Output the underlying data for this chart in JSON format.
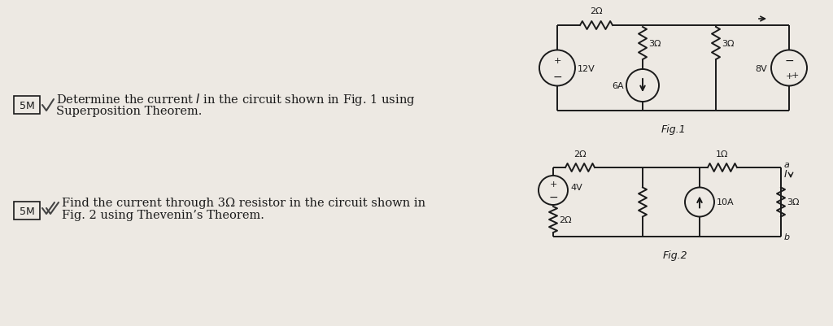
{
  "bg_color": "#ede9e3",
  "line_color": "#1a1a1a",
  "q1_line1": "Determine the current $I$ in the circuit shown in Fig. 1 using",
  "q1_line2": "Superposition Theorem.",
  "q2_line1": "Find the current through 3Ω resistor in the circuit shown in",
  "q2_line2": "Fig. 2 using Thevenin’s Theorem.",
  "font_size_text": 11
}
